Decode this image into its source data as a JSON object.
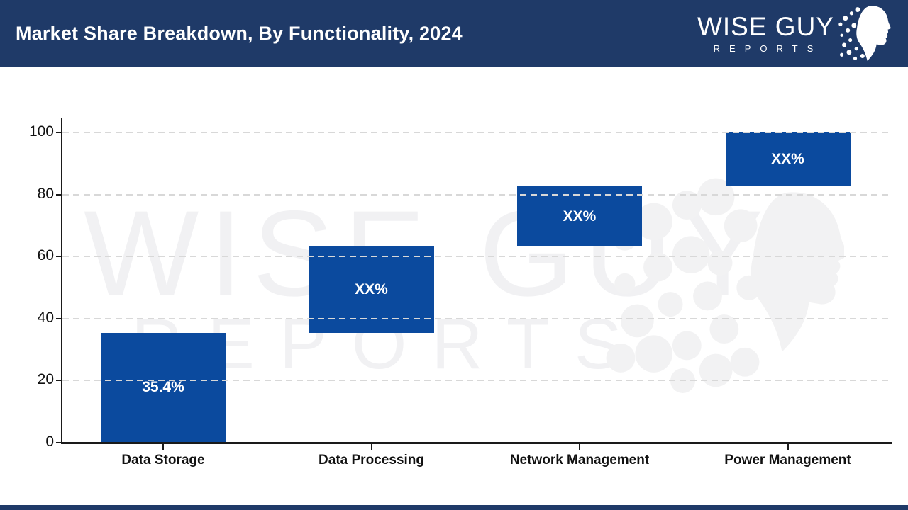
{
  "header": {
    "title": "Market Share Breakdown, By Functionality, 2024",
    "bg_color": "#1f3a68",
    "brand": {
      "name": "WISE GUY",
      "sub": "REPORTS"
    }
  },
  "watermark": {
    "line1": "WISE GUY",
    "line2": "REPORTS"
  },
  "chart_data": {
    "type": "bar",
    "subtype": "waterfall",
    "title": "Market Share Breakdown, By Functionality, 2024",
    "categories": [
      "Data Storage",
      "Data Processing",
      "Network Management",
      "Power Management"
    ],
    "segments": [
      [
        0,
        35.4
      ],
      [
        35.4,
        63.2
      ],
      [
        63.2,
        82.6
      ],
      [
        82.6,
        100
      ]
    ],
    "bar_labels": [
      "35.4%",
      "XX%",
      "XX%",
      "XX%"
    ],
    "xlabel": "",
    "ylabel": "",
    "ylim": [
      0,
      105
    ],
    "yticks": [
      0,
      20,
      40,
      60,
      80,
      100
    ],
    "grid": "dashed-horizontal",
    "legend": "none",
    "bar_color": "#0b4a9e",
    "bar_label_color": "#ffffff",
    "gridline_color": "#d8d8d8",
    "axis_color": "#1a1a1a"
  },
  "footer": {
    "bg_color": "#1f3a68"
  }
}
